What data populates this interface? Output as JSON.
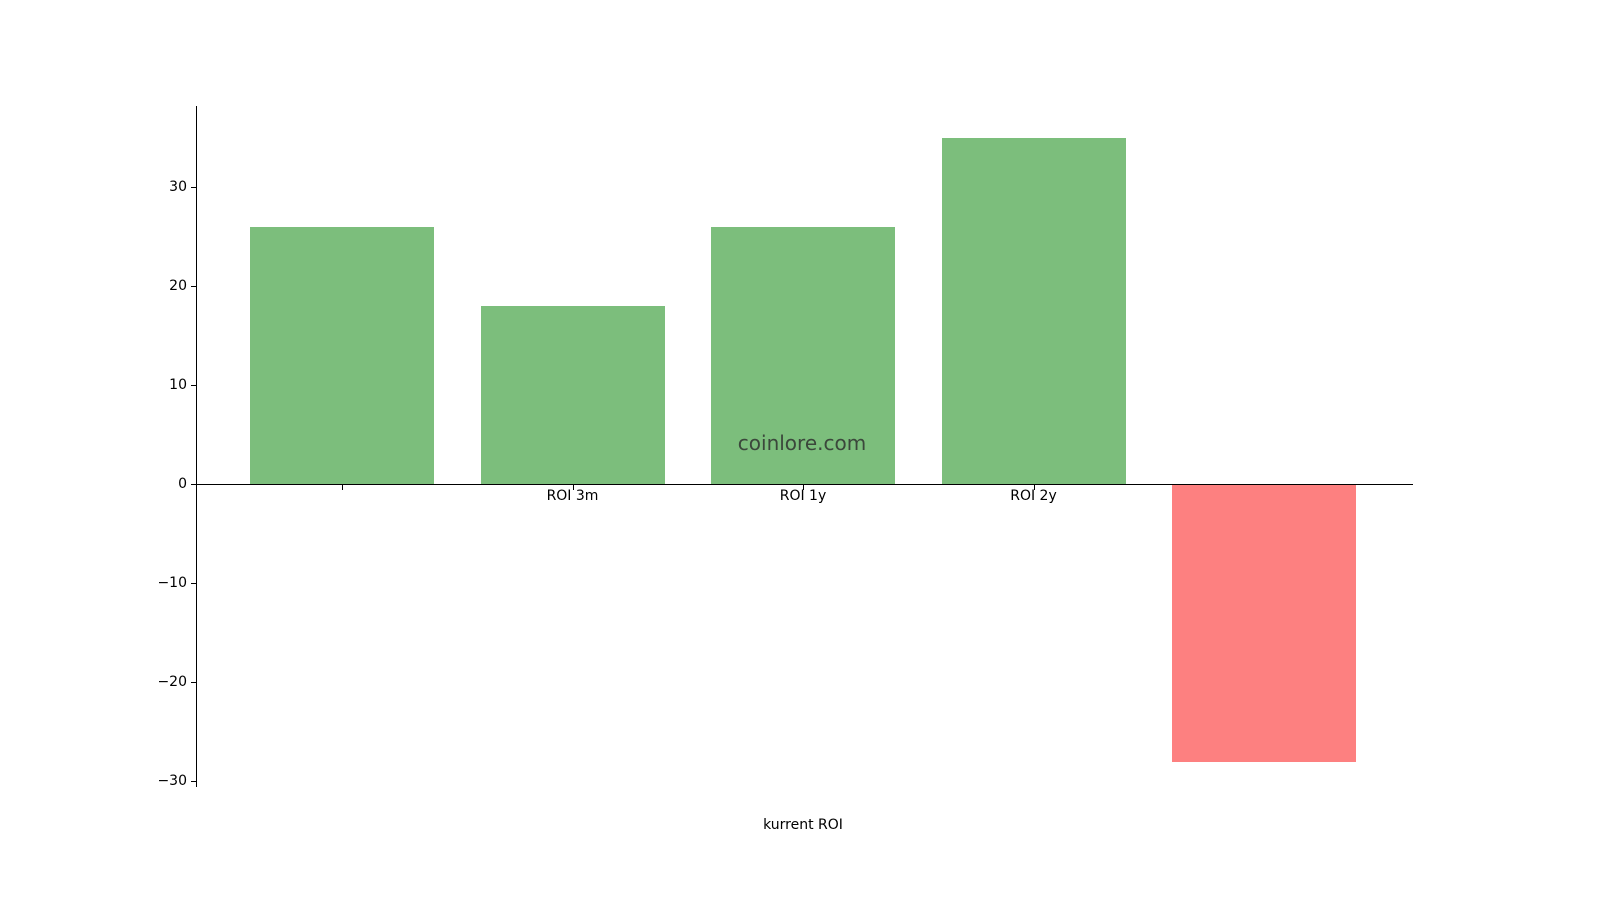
{
  "page": {
    "background_color": "#ffffff"
  },
  "watermark": {
    "text": "coinlore.com",
    "color": "#2d2d2d"
  },
  "chart_data": {
    "type": "bar",
    "title": "",
    "xlabel": "kurrent ROI",
    "ylabel": "",
    "categories": [
      "",
      "ROI 3m",
      "ROI 1y",
      "ROI 2y",
      ""
    ],
    "values": [
      26,
      18,
      26,
      35,
      -28
    ],
    "series": [
      {
        "name": "kurrent ROI",
        "values": [
          26,
          18,
          26,
          35,
          -28
        ]
      }
    ],
    "positive_color": "#7cbe7c",
    "negative_color": "#fd8080",
    "bar_colors": [
      "#7cbe7c",
      "#7cbe7c",
      "#7cbe7c",
      "#7cbe7c",
      "#fd8080"
    ],
    "y_ticks": [
      30,
      20,
      10,
      0,
      -10,
      -20,
      -30
    ],
    "y_tick_labels": [
      "30",
      "20",
      "10",
      "0",
      "−10",
      "−20",
      "−30"
    ],
    "x_ticks_visible": [
      true,
      true,
      true,
      true,
      false
    ],
    "ylim": [
      -31,
      38
    ],
    "grid": false,
    "legend_position": "none",
    "axis_color": "#000000"
  }
}
